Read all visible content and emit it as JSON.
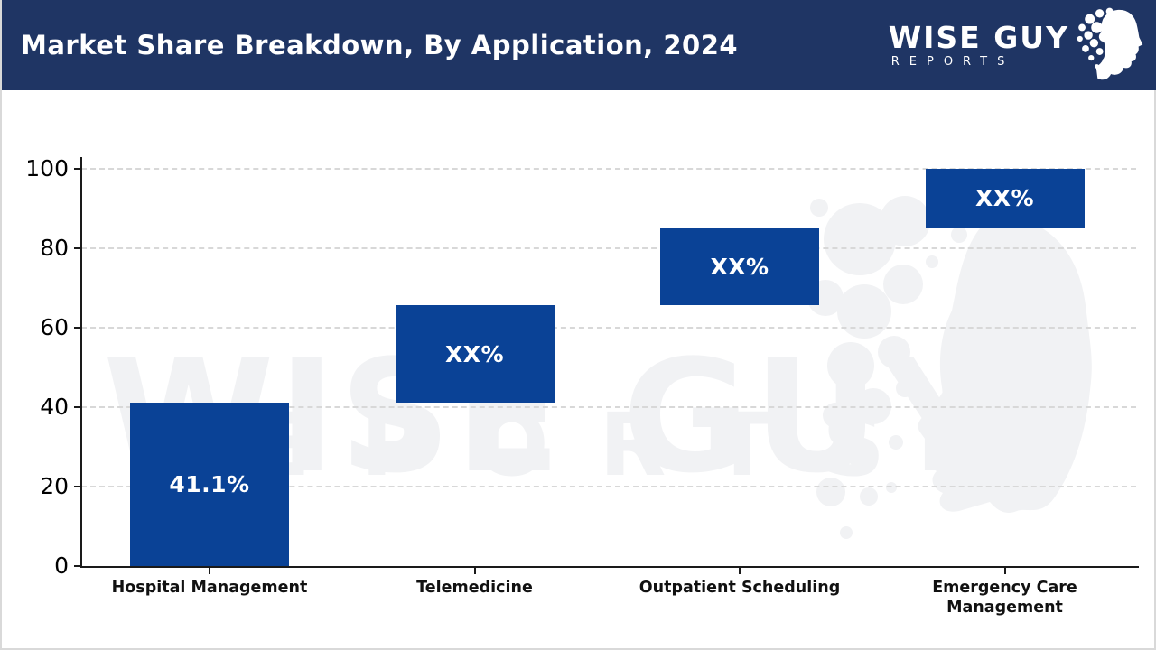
{
  "page": {
    "bg": "#ffffff",
    "border_color": "#d9d9d9"
  },
  "header": {
    "bg": "#1f3564",
    "title": "Market Share Breakdown, By Application, 2024",
    "logo": {
      "line1": "WISE GUY",
      "line2": "REPORTS"
    }
  },
  "watermark": {
    "line1": "WISE GUY",
    "line2": "REPORTS",
    "color": "#f1f2f4"
  },
  "chart_data": {
    "type": "bar",
    "subtype": "floating-segment-waterfall",
    "title": "Market Share Breakdown, By Application, 2024",
    "categories": [
      "Hospital Management",
      "Telemedicine",
      "Outpatient Scheduling",
      "Emergency Care Management"
    ],
    "bars": [
      {
        "category": "Hospital Management",
        "start": 0,
        "end": 41.1,
        "label": "41.1%"
      },
      {
        "category": "Telemedicine",
        "start": 41.1,
        "end": 65.6,
        "label": "XX%"
      },
      {
        "category": "Outpatient Scheduling",
        "start": 65.6,
        "end": 85.2,
        "label": "XX%"
      },
      {
        "category": "Emergency Care Management",
        "start": 85.2,
        "end": 100,
        "label": "XX%"
      }
    ],
    "bar_color": "#0a4296",
    "label_color": "#ffffff",
    "yticks": [
      0,
      20,
      40,
      60,
      80,
      100
    ],
    "ylim": [
      0,
      105
    ],
    "xlabel": "",
    "ylabel": "",
    "grid": "horizontal-dashed",
    "grid_color": "#d8d8d8",
    "legend": "none"
  }
}
